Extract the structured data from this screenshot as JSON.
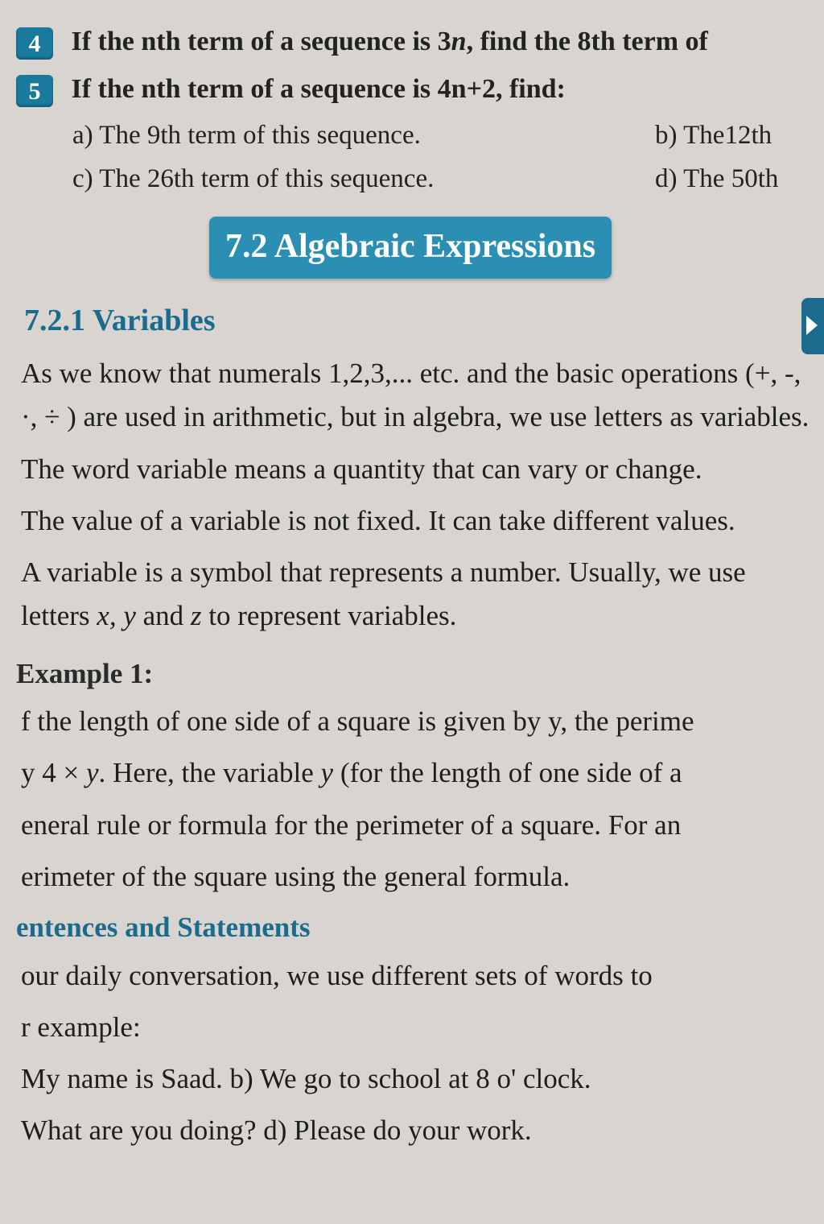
{
  "questions": {
    "q4": {
      "badge": "4",
      "text_before": "If the nth term of a sequence is 3",
      "text_ital": "n",
      "text_after": ", find the 8th term of"
    },
    "q5": {
      "badge": "5",
      "text": "If the nth term of a sequence is 4n+2, find:",
      "parts": {
        "a": "a) The 9th term of this sequence.",
        "b": "b) The12th",
        "c": "c) The 26th term of this sequence.",
        "d": "d) The 50th"
      }
    }
  },
  "section_banner": "7.2 Algebraic Expressions",
  "subheading": "7.2.1 Variables",
  "paragraphs": {
    "p1": "As we know that numerals 1,2,3,... etc. and the basic operations (+, -, ·, ÷ ) are used in arithmetic, but in algebra, we use letters as variables.",
    "p2": "The word variable means a quantity that can vary or change.",
    "p3": "The value of a variable is not fixed. It can take different values.",
    "p4_before": "A variable is a symbol that represents a number. Usually, we use letters ",
    "p4_vars": "x, y",
    "p4_mid": " and ",
    "p4_z": "z",
    "p4_after": " to represent variables."
  },
  "example": {
    "label": "Example 1:",
    "body_l1": "f the length of one side of a square is given by y, the perime",
    "body_l2_before": "y 4 × ",
    "body_l2_y": "y",
    "body_l2_mid": ". Here, the variable ",
    "body_l2_y2": "y",
    "body_l2_after": " (for the length of one side of a",
    "body_l3": "eneral rule or formula for the perimeter of a square. For an",
    "body_l4": "erimeter of the square using the general formula."
  },
  "sub_topic": "entences and Statements",
  "closing": {
    "p1": "our daily conversation, we use different sets of words to",
    "p2": "r example:",
    "p3": "My name is Saad. b) We go to school at 8 o' clock.",
    "p4": "What are you doing? d) Please do your work."
  }
}
